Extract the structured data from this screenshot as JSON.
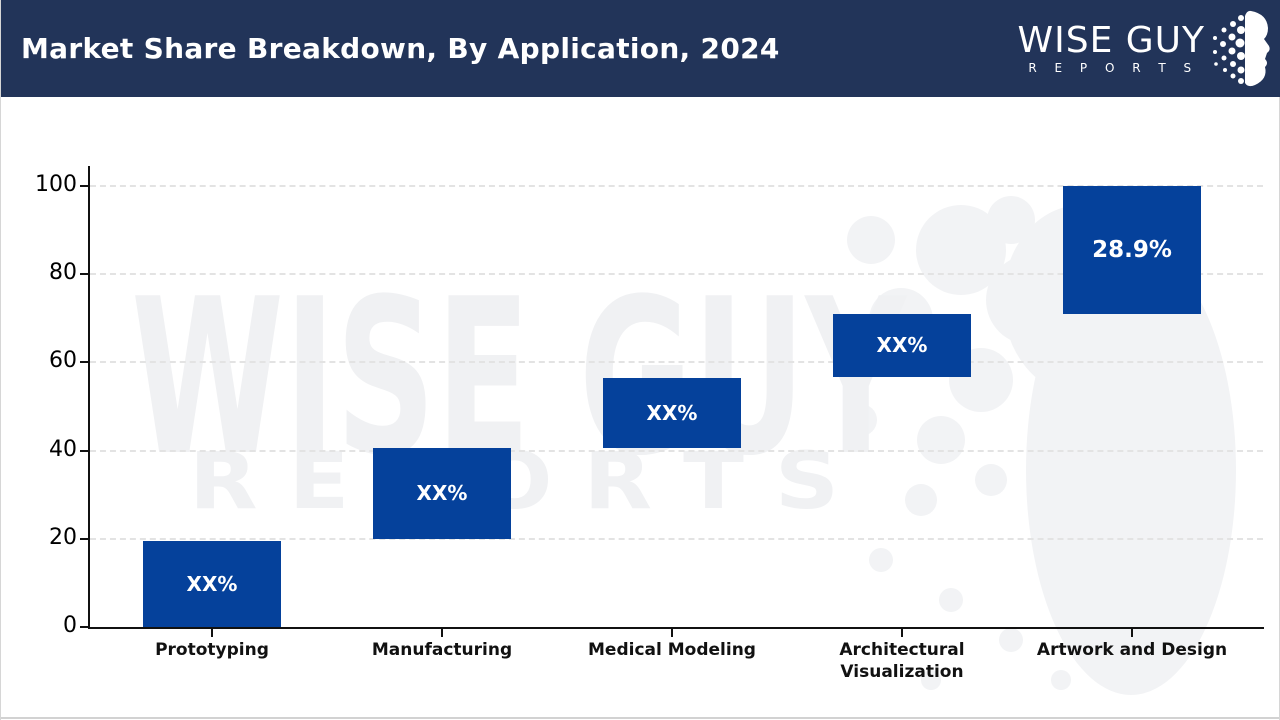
{
  "header": {
    "title": "Market Share Breakdown, By Application, 2024",
    "logo": {
      "wordmark": "WISE GUY",
      "subtitle": "R E P O R T S"
    }
  },
  "watermark": {
    "line1": "WISE GUY",
    "line2": "R E P O R T S"
  },
  "colors": {
    "header_bg": "#223459",
    "bar": "#05419b",
    "grid": "#e3e3e3",
    "axis": "#111111",
    "watermark": "#f0f1f3",
    "bar_label": "#ffffff"
  },
  "chart_data": {
    "type": "bar",
    "subtype": "floating-waterfall",
    "title": "Market Share Breakdown, By Application, 2024",
    "xlabel": "",
    "ylabel": "",
    "ylim": [
      0,
      100
    ],
    "yticks": [
      0,
      20,
      40,
      60,
      80,
      100
    ],
    "grid": "horizontal-dashed",
    "legend": "none",
    "categories": [
      "Prototyping",
      "Manufacturing",
      "Medical Modeling",
      "Architectural Visualization",
      "Artwork and Design"
    ],
    "category_label_lines": [
      [
        "Prototyping"
      ],
      [
        "Manufacturing"
      ],
      [
        "Medical Modeling"
      ],
      [
        "Architectural",
        "Visualization"
      ],
      [
        "Artwork and Design"
      ]
    ],
    "bars": [
      {
        "category": "Prototyping",
        "start": 0,
        "end": 19.4,
        "label": "XX%"
      },
      {
        "category": "Manufacturing",
        "start": 20.0,
        "end": 40.6,
        "label": "XX%"
      },
      {
        "category": "Medical Modeling",
        "start": 40.6,
        "end": 56.5,
        "label": "XX%"
      },
      {
        "category": "Architectural Visualization",
        "start": 56.7,
        "end": 70.9,
        "label": "XX%"
      },
      {
        "category": "Artwork and Design",
        "start": 71.0,
        "end": 99.9,
        "label": "28.9%",
        "value": 28.9
      }
    ]
  }
}
